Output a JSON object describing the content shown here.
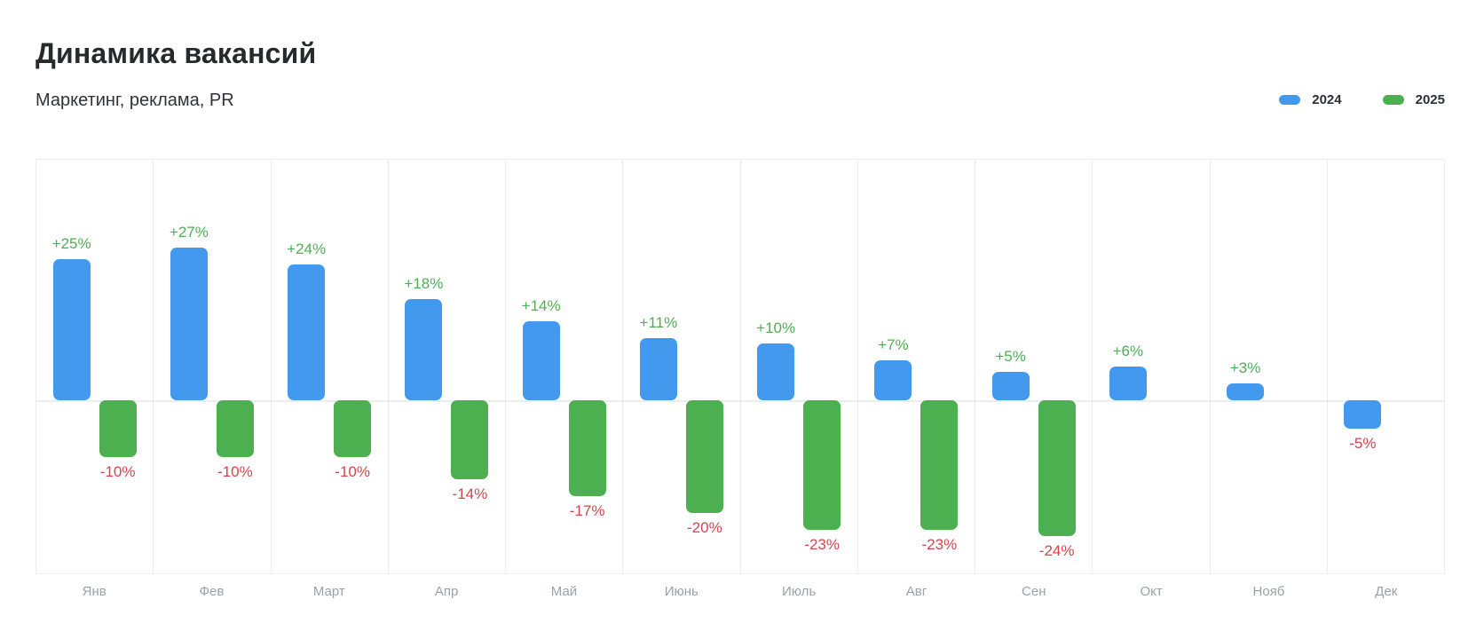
{
  "header": {
    "title": "Динамика вакансий",
    "subtitle": "Маркетинг, реклама, PR"
  },
  "legend": [
    {
      "label": "2024",
      "color": "#4299ee"
    },
    {
      "label": "2025",
      "color": "#4caf50"
    }
  ],
  "chart_data": {
    "type": "bar",
    "title": "Динамика вакансий",
    "subtitle": "Маркетинг, реклама, PR",
    "categories": [
      "Янв",
      "Фев",
      "Март",
      "Апр",
      "Май",
      "Июнь",
      "Июль",
      "Авг",
      "Сен",
      "Окт",
      "Нояб",
      "Дек"
    ],
    "series": [
      {
        "name": "2024",
        "color": "#4299ee",
        "values": [
          25,
          27,
          24,
          18,
          14,
          11,
          10,
          7,
          5,
          6,
          3,
          -5
        ],
        "labels": [
          "+25%",
          "+27%",
          "+24%",
          "+18%",
          "+14%",
          "+11%",
          "+10%",
          "+7%",
          "+5%",
          "+6%",
          "+3%",
          "-5%"
        ]
      },
      {
        "name": "2025",
        "color": "#4caf50",
        "values": [
          -10,
          -10,
          -10,
          -14,
          -17,
          -20,
          -23,
          -23,
          -24,
          null,
          null,
          null
        ],
        "labels": [
          "-10%",
          "-10%",
          "-10%",
          "-14%",
          "-17%",
          "-20%",
          "-23%",
          "-23%",
          "-24%",
          null,
          null,
          null
        ]
      }
    ],
    "value_labels": {
      "positive_color": "#4fae55",
      "negative_color": "#d4454e"
    },
    "unit": "%",
    "ylim": [
      -31,
      43
    ],
    "grid": "vertical-monthly",
    "legend_position": "top-right"
  }
}
